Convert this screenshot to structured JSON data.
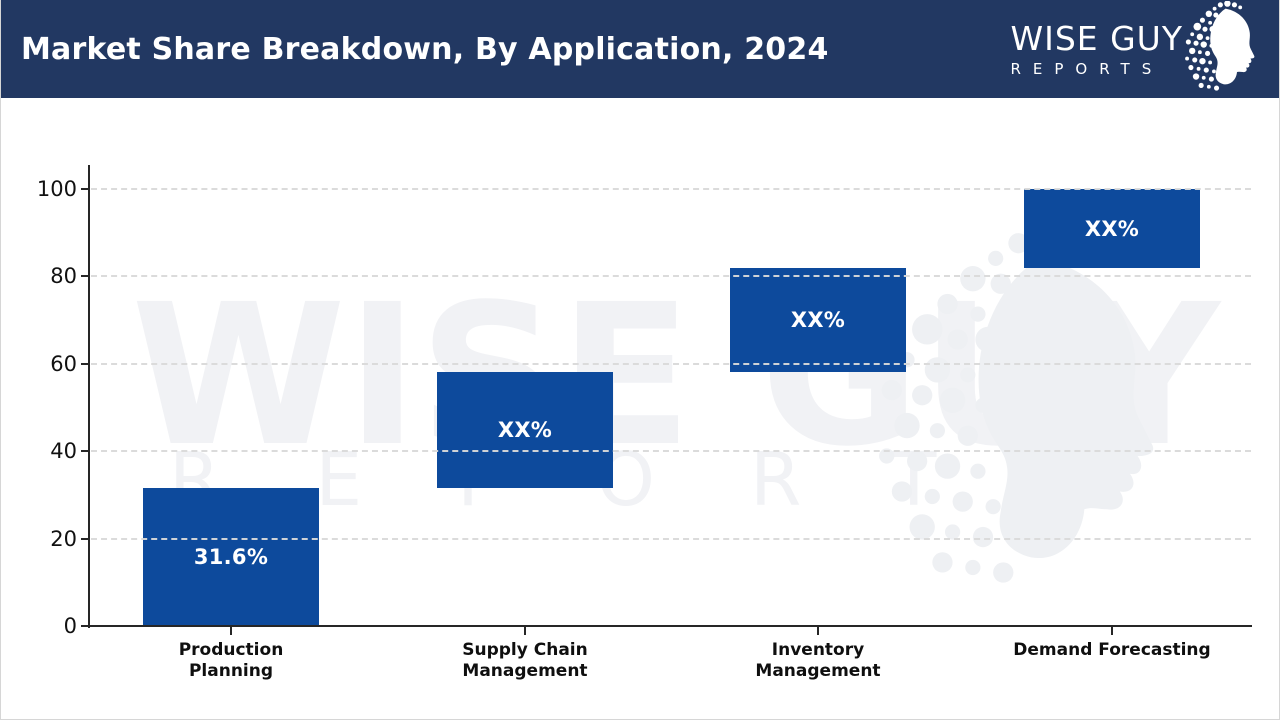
{
  "header": {
    "title": "Market Share Breakdown, By Application, 2024",
    "logo": {
      "line1": "WISE GUY",
      "line2": "REPORTS"
    }
  },
  "watermark": {
    "line1": "WISE GUY",
    "line2": "REPORTS"
  },
  "chart_data": {
    "type": "bar",
    "subtype": "waterfall",
    "title": "Market Share Breakdown, By Application, 2024",
    "xlabel": "",
    "ylabel": "",
    "ylim": [
      0,
      105
    ],
    "yticks": [
      0,
      20,
      40,
      60,
      80,
      100
    ],
    "grid": "horizontal-dashed",
    "legend": "none",
    "bar_color": "#0D4A9C",
    "value_label_color": "#FFFFFF",
    "axis_color": "#262626",
    "grid_color": "#D9D9D9",
    "categories": [
      {
        "label": "Production Planning",
        "lines": [
          "Production",
          "Planning"
        ]
      },
      {
        "label": "Supply Chain Management",
        "lines": [
          "Supply Chain",
          "Management"
        ]
      },
      {
        "label": "Inventory Management",
        "lines": [
          "Inventory",
          "Management"
        ]
      },
      {
        "label": "Demand Forecasting",
        "lines": [
          "Demand Forecasting"
        ]
      }
    ],
    "series": [
      {
        "name": "Market Share (%)",
        "segments": [
          {
            "category": "Production Planning",
            "start": 0,
            "end": 31.6,
            "label": "31.6%"
          },
          {
            "category": "Supply Chain Management",
            "start": 31.6,
            "end": 58.1,
            "label": "XX%"
          },
          {
            "category": "Inventory Management",
            "start": 58.1,
            "end": 81.9,
            "label": "XX%"
          },
          {
            "category": "Demand Forecasting",
            "start": 81.9,
            "end": 100,
            "label": "XX%"
          }
        ]
      }
    ]
  },
  "colors": {
    "header_bg": "#223862",
    "bar": "#0D4A9C",
    "watermark": "#F1F2F5",
    "grid": "#D9D9D9",
    "axis": "#262626"
  }
}
